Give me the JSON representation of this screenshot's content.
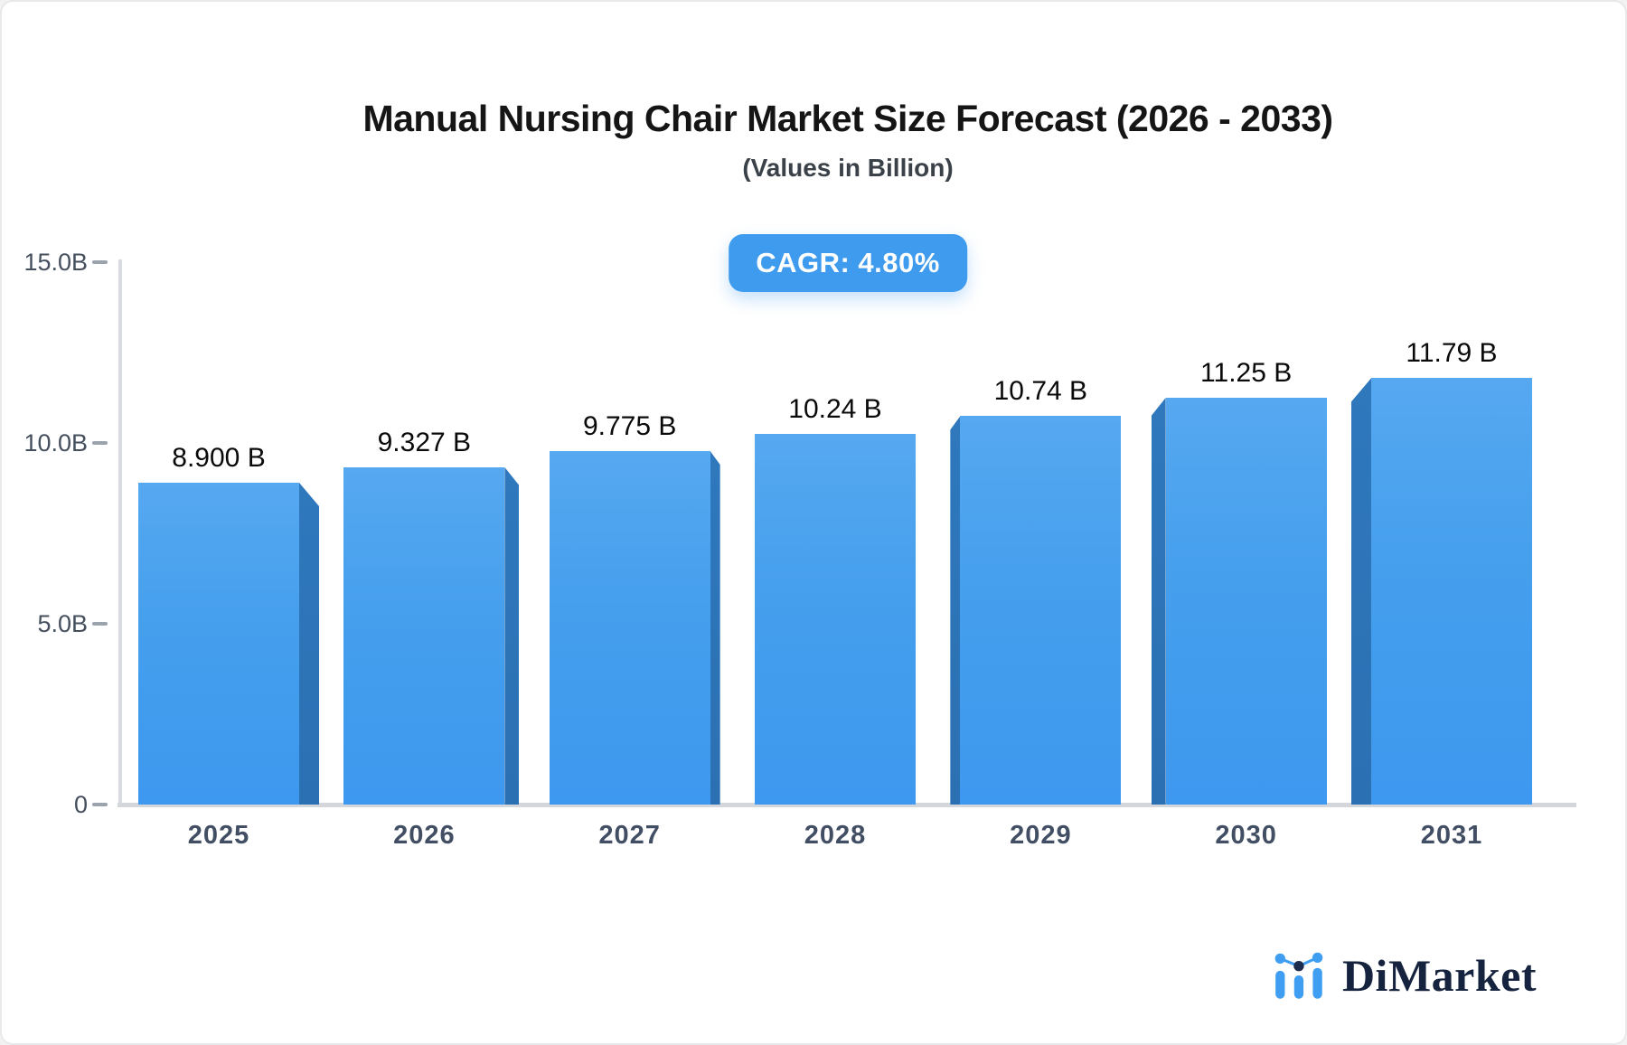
{
  "header": {
    "title": "Manual Nursing Chair Market Size Forecast (2026 - 2033)",
    "subtitle": "(Values in Billion)"
  },
  "badge": {
    "label": "CAGR: 4.80%",
    "color": "#3f9bed"
  },
  "chart_data": {
    "type": "bar",
    "title": "Manual Nursing Chair Market Size Forecast (2026 - 2033)",
    "subtitle": "(Values in Billion)",
    "xlabel": "",
    "ylabel": "",
    "categories": [
      "2025",
      "2026",
      "2027",
      "2028",
      "2029",
      "2030",
      "2031"
    ],
    "values": [
      8.9,
      9.327,
      9.775,
      10.24,
      10.74,
      11.25,
      11.79
    ],
    "value_labels": [
      "8.900 B",
      "9.327 B",
      "9.775 B",
      "10.24 B",
      "10.74 B",
      "11.25 B",
      "11.79 B"
    ],
    "ylim": [
      0,
      15
    ],
    "yticks": [
      {
        "label": "15.0B",
        "value": 15
      },
      {
        "label": "10.0B",
        "value": 10
      },
      {
        "label": "5.0B",
        "value": 5
      },
      {
        "label": "0",
        "value": 0
      }
    ],
    "grid": false,
    "legend": "none",
    "bar_front_top_color": "#56a8f0",
    "bar_front_bottom_color": "#3d98ef",
    "bar_side_color": "#2d74b6",
    "bevels": [
      "right",
      "right",
      "right",
      "none",
      "left",
      "left",
      "left"
    ],
    "bevel_widths": [
      22,
      16,
      11,
      0,
      11,
      16,
      22
    ]
  },
  "logo": {
    "text": "DiMarket",
    "icon": "mini-bar-chart-icon",
    "icon_color": "#3f9ef2",
    "icon_dark_dot_color": "#1d2c4c",
    "text_color": "#16233e"
  }
}
